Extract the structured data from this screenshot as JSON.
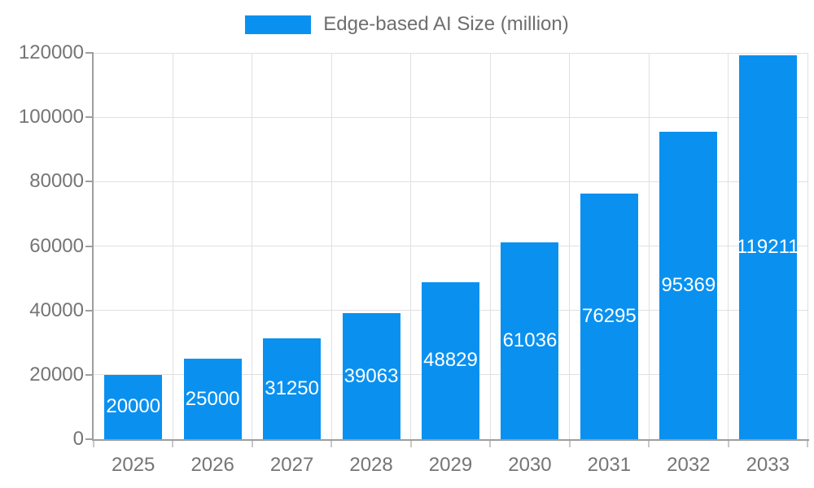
{
  "legend": {
    "label": "Edge-based AI Size (million)"
  },
  "chart_data": {
    "type": "bar",
    "title": "",
    "xlabel": "",
    "ylabel": "",
    "categories": [
      "2025",
      "2026",
      "2027",
      "2028",
      "2029",
      "2030",
      "2031",
      "2032",
      "2033"
    ],
    "series": [
      {
        "name": "Edge-based AI Size (million)",
        "values": [
          20000,
          25000,
          31250,
          39063,
          48829,
          61036,
          76295,
          95369,
          119211
        ]
      }
    ],
    "bar_labels": [
      "20000",
      "25000",
      "31250",
      "39063",
      "48829",
      "61036",
      "76295",
      "95369",
      "119211"
    ],
    "ylim": [
      0,
      120000
    ],
    "yticks": [
      0,
      20000,
      40000,
      60000,
      80000,
      100000,
      120000
    ],
    "ytick_labels": [
      "0",
      "20000",
      "40000",
      "60000",
      "80000",
      "100000",
      "120000"
    ],
    "grid": true,
    "legend_position": "top",
    "colors": {
      "bar": "#0a91f0",
      "grid": "#e0e0e0",
      "axis": "#9e9e9e",
      "x_tick_mark": "#c8c8c8",
      "tick_label": "#757575",
      "legend_label": "#6e6e6e",
      "bar_label": "#ffffff",
      "background": "#ffffff"
    }
  }
}
